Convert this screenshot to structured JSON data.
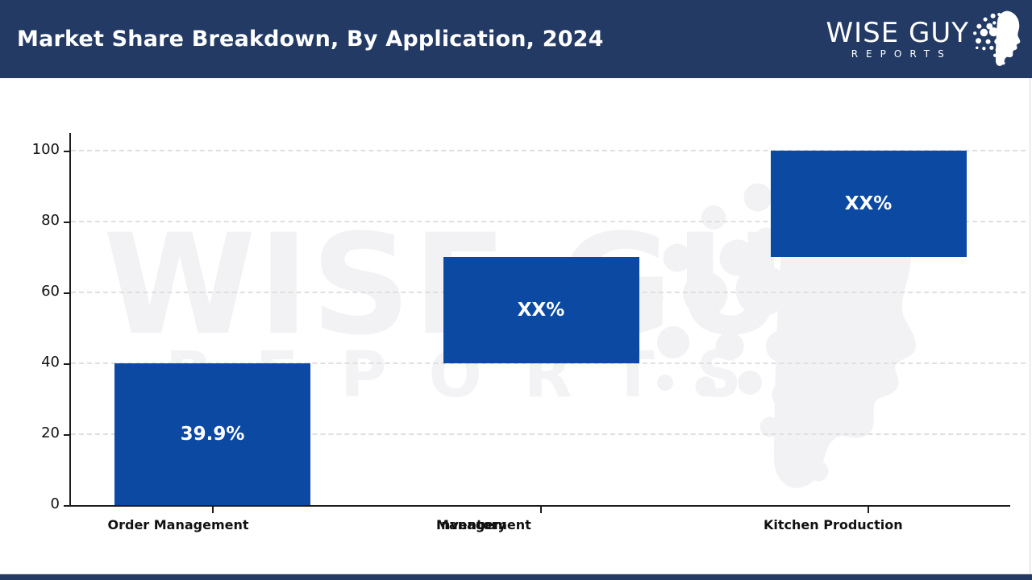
{
  "header": {
    "title": "Market Share Breakdown, By Application, 2024",
    "logo": {
      "line1": "WISE GUY",
      "line2": "REPORTS"
    }
  },
  "watermark": {
    "line1": "WISE GUY",
    "line2": "REPORTS"
  },
  "chart_data": {
    "type": "bar",
    "subtype": "floating-segment-waterfall",
    "title": "Market Share Breakdown, By Application, 2024",
    "xlabel": "",
    "ylabel": "",
    "categories": [
      "Order Management",
      "Inventory Management",
      "Kitchen Production"
    ],
    "bars": [
      {
        "category": "Order Management",
        "label_lines": [
          "Order Management"
        ],
        "start": 0,
        "end": 40,
        "value_label": "39.9%"
      },
      {
        "category": "Inventory Management",
        "label_lines": [
          "Inventory",
          "Management"
        ],
        "start": 40,
        "end": 70,
        "value_label": "XX%"
      },
      {
        "category": "Kitchen Production",
        "label_lines": [
          "Kitchen Production"
        ],
        "start": 70,
        "end": 100,
        "value_label": "XX%"
      }
    ],
    "y_ticks": [
      0,
      20,
      40,
      60,
      80,
      100
    ],
    "ylim": [
      0,
      105
    ],
    "grid": "horizontal-dashed",
    "legend": "none",
    "bar_color": "#0c49a2",
    "bar_label_color": "#ffffff",
    "axis_color": "#1c1c1c",
    "grid_color": "#dfdfdf",
    "tick_label_color": "#111111"
  },
  "colors": {
    "header_bg": "#233a64",
    "footer_bg": "#233a64",
    "watermark": "#f2f2f4"
  }
}
